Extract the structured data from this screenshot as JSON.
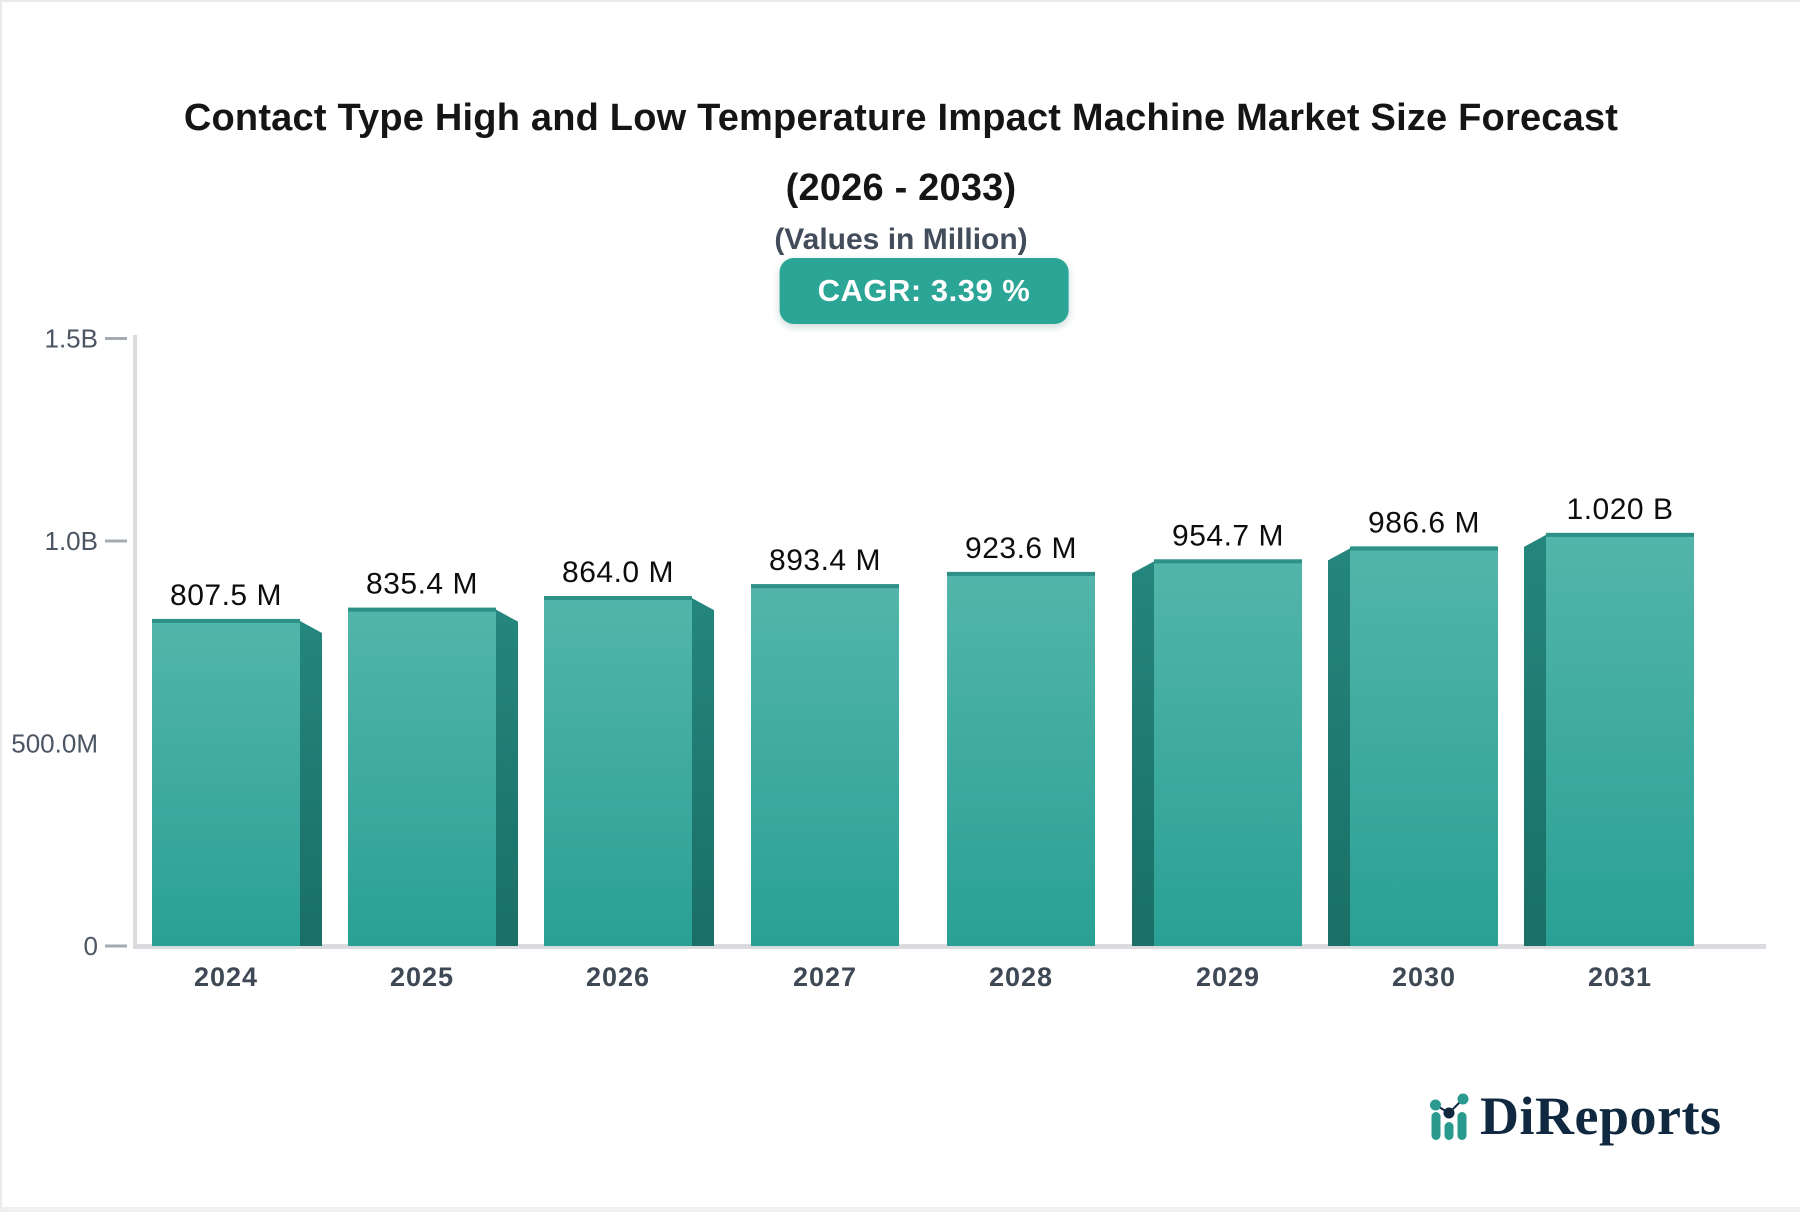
{
  "header": {
    "title_line1": "Contact Type High and Low Temperature Impact Machine Market Size Forecast",
    "title_line2": "(2026 - 2033)",
    "subtitle": "(Values in Million)",
    "cagr_label": "CAGR: 3.39 %"
  },
  "logo": {
    "text": "DiReports"
  },
  "chart_data": {
    "type": "bar",
    "title": "Contact Type High and Low Temperature Impact Machine Market Size Forecast (2026 - 2033)",
    "subtitle": "(Values in Million)",
    "cagr": "3.39 %",
    "xlabel": "",
    "ylabel": "",
    "unit": "Million",
    "categories": [
      "2024",
      "2025",
      "2026",
      "2027",
      "2028",
      "2029",
      "2030",
      "2031"
    ],
    "values": [
      807.5,
      835.4,
      864.0,
      893.4,
      923.6,
      954.7,
      986.6,
      1020.0
    ],
    "value_labels": [
      "807.5 M",
      "835.4 M",
      "864.0 M",
      "893.4 M",
      "923.6 M",
      "954.7 M",
      "986.6 M",
      "1.020 B"
    ],
    "ylim": [
      0,
      1500
    ],
    "grid": false,
    "legend": "none",
    "y_ticks": [
      {
        "label": "1.5B",
        "value": 1500,
        "dash": true
      },
      {
        "label": "1.0B",
        "value": 1000,
        "dash": true
      },
      {
        "label": "500.0M",
        "value": 500,
        "dash": false
      },
      {
        "label": "0",
        "value": 0,
        "dash": true
      }
    ],
    "bar_sides": [
      "right",
      "right",
      "right",
      "none",
      "none",
      "left",
      "left",
      "left"
    ],
    "colors": {
      "face_top": "#53b5aa",
      "face_bottom": "#2aa095",
      "side_top": "#24867d",
      "side_bottom": "#1a6f66",
      "top_edge": "#2e9086",
      "axis_line": "#d9dbde",
      "tick_dash": "#a6abb2",
      "tick_label": "#4b5563",
      "year_label": "#3e4955",
      "value_label": "#0c0d0e",
      "accent": "#2aa596"
    }
  }
}
